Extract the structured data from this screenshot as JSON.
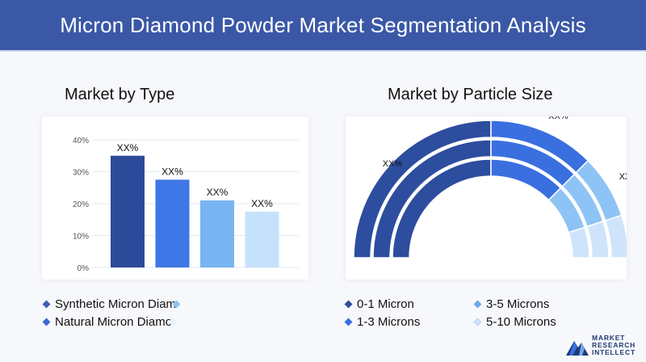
{
  "header": {
    "title": "Micron Diamond Powder Market Segmentation Analysis"
  },
  "left_section": {
    "title": "Market by Type"
  },
  "right_section": {
    "title": "Market by Particle Size"
  },
  "left_legend": [
    {
      "label": "Synthetic Micron Diam",
      "color": "#3f5fb5"
    },
    {
      "label": "Natural Micron Diamo",
      "color": "#3f66d6"
    }
  ],
  "right_legend": [
    {
      "label": "0-1 Micron",
      "color": "#2d4d9e"
    },
    {
      "label": "1-3 Microns",
      "color": "#3a6fe0"
    },
    {
      "label": "3-5 Microns",
      "color": "#6fa8ee"
    },
    {
      "label": "5-10 Microns",
      "color": "#cfe4fb"
    }
  ],
  "logo": {
    "lines": [
      "MARKET",
      "RESEARCH",
      "INTELLECT"
    ]
  },
  "chart_data": [
    {
      "type": "bar",
      "title": "Market by Type",
      "yticks": [
        "0%",
        "10%",
        "20%",
        "30%",
        "40%"
      ],
      "ylim": [
        0,
        40
      ],
      "values": [
        35,
        27.5,
        21,
        17.5
      ],
      "data_labels": [
        "XX%",
        "XX%",
        "XX%",
        "XX%"
      ],
      "colors": [
        "#2c4a99",
        "#3f77e6",
        "#79b4f3",
        "#c6e2fb"
      ],
      "grid": true
    },
    {
      "type": "pie",
      "subtype": "semicircle-donut",
      "title": "Market by Particle Size",
      "values": [
        50,
        25,
        15,
        10
      ],
      "data_labels": [
        "XX%",
        "XX%",
        "XX%",
        "XX%"
      ],
      "colors": [
        "#2d4d9e",
        "#3a6fe0",
        "#8ec3f5",
        "#cfe4fb"
      ]
    }
  ]
}
